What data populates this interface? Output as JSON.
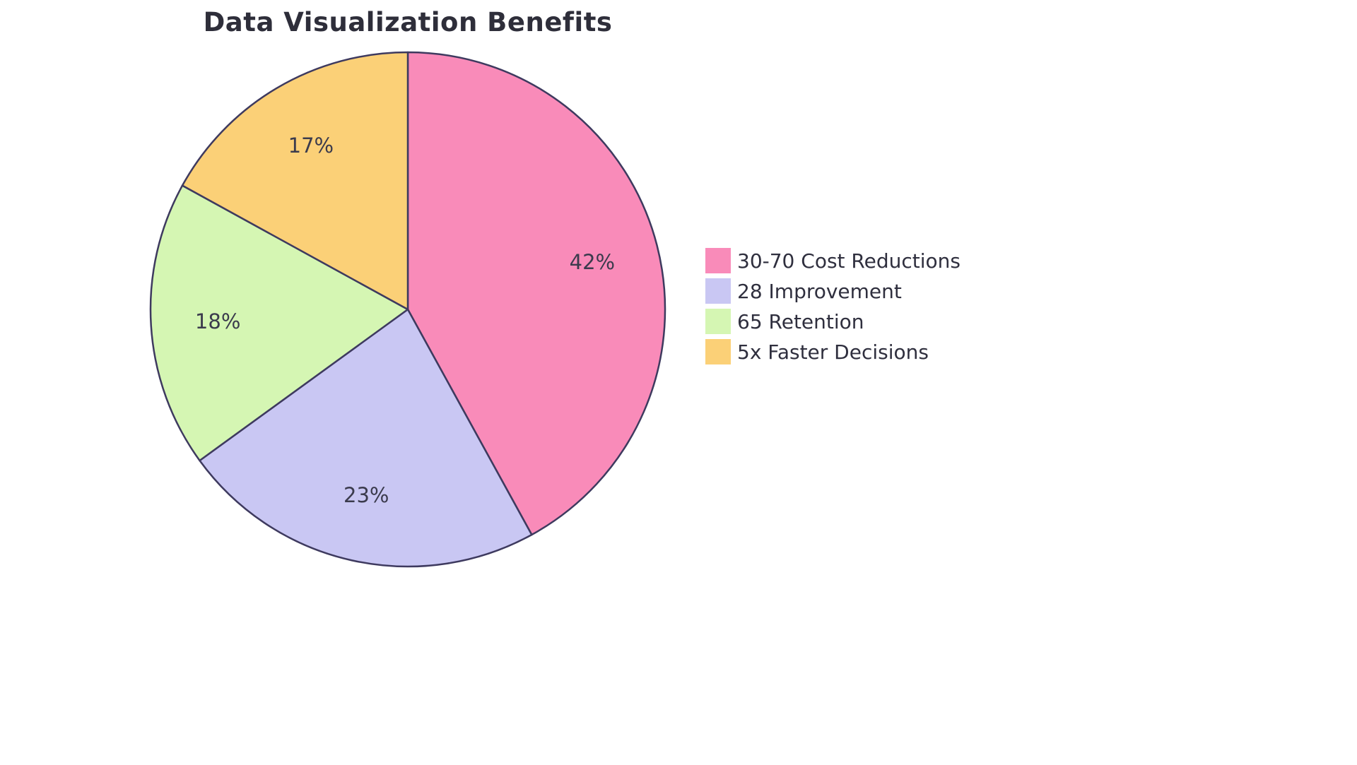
{
  "chart_data": {
    "type": "pie",
    "title": "Data Visualization Benefits",
    "legend_position": "right",
    "start_angle_deg": 0,
    "direction": "clockwise",
    "stroke_color": "#3e3a5f",
    "slices": [
      {
        "label": "30-70 Cost Reductions",
        "value": 42,
        "pct_label": "42%",
        "color": "#f98bb9"
      },
      {
        "label": "28 Improvement",
        "value": 23,
        "pct_label": "23%",
        "color": "#c9c7f3"
      },
      {
        "label": "65 Retention",
        "value": 18,
        "pct_label": "18%",
        "color": "#d5f6b3"
      },
      {
        "label": "5x Faster Decisions",
        "value": 17,
        "pct_label": "17%",
        "color": "#fbd077"
      }
    ]
  }
}
